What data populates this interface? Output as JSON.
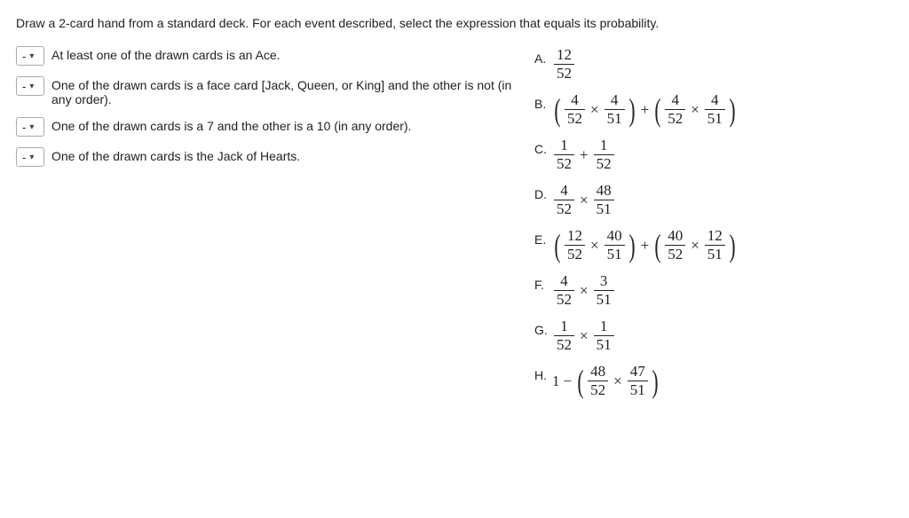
{
  "instruction": "Draw a 2-card hand from a standard deck. For each event described, select the expression that equals its probability.",
  "dropdown_value": "-",
  "prompts": [
    "At least one of the drawn cards is an Ace.",
    "One of the drawn cards is a face card [Jack, Queen, or King] and the other is not (in any order).",
    "One of the drawn cards is a 7 and the other is a 10 (in any order).",
    "One of the drawn cards is the Jack of Hearts."
  ],
  "choices": {
    "A": {
      "type": "frac",
      "num": "12",
      "den": "52"
    },
    "B": {
      "type": "two-term-paren",
      "a": "4",
      "b": "52",
      "c": "4",
      "d": "51",
      "e": "4",
      "f": "52",
      "g": "4",
      "h": "51"
    },
    "C": {
      "type": "sum-frac",
      "a": "1",
      "b": "52",
      "c": "1",
      "d": "52"
    },
    "D": {
      "type": "mult-frac",
      "a": "4",
      "b": "52",
      "c": "48",
      "d": "51"
    },
    "E": {
      "type": "two-term-paren",
      "a": "12",
      "b": "52",
      "c": "40",
      "d": "51",
      "e": "40",
      "f": "52",
      "g": "12",
      "h": "51"
    },
    "F": {
      "type": "mult-frac",
      "a": "4",
      "b": "52",
      "c": "3",
      "d": "51"
    },
    "G": {
      "type": "mult-frac",
      "a": "1",
      "b": "52",
      "c": "1",
      "d": "51"
    },
    "H": {
      "type": "one-minus-paren",
      "a": "48",
      "b": "52",
      "c": "47",
      "d": "51"
    }
  },
  "style": {
    "font_family_body": "Segoe UI, Arial, sans-serif",
    "font_family_math": "Times New Roman, serif",
    "font_size_body": 14,
    "font_size_math": 17,
    "background": "#ffffff",
    "text_color": "#222222",
    "border_color": "#aaaaaa",
    "fraction_bar_color": "#222222"
  }
}
